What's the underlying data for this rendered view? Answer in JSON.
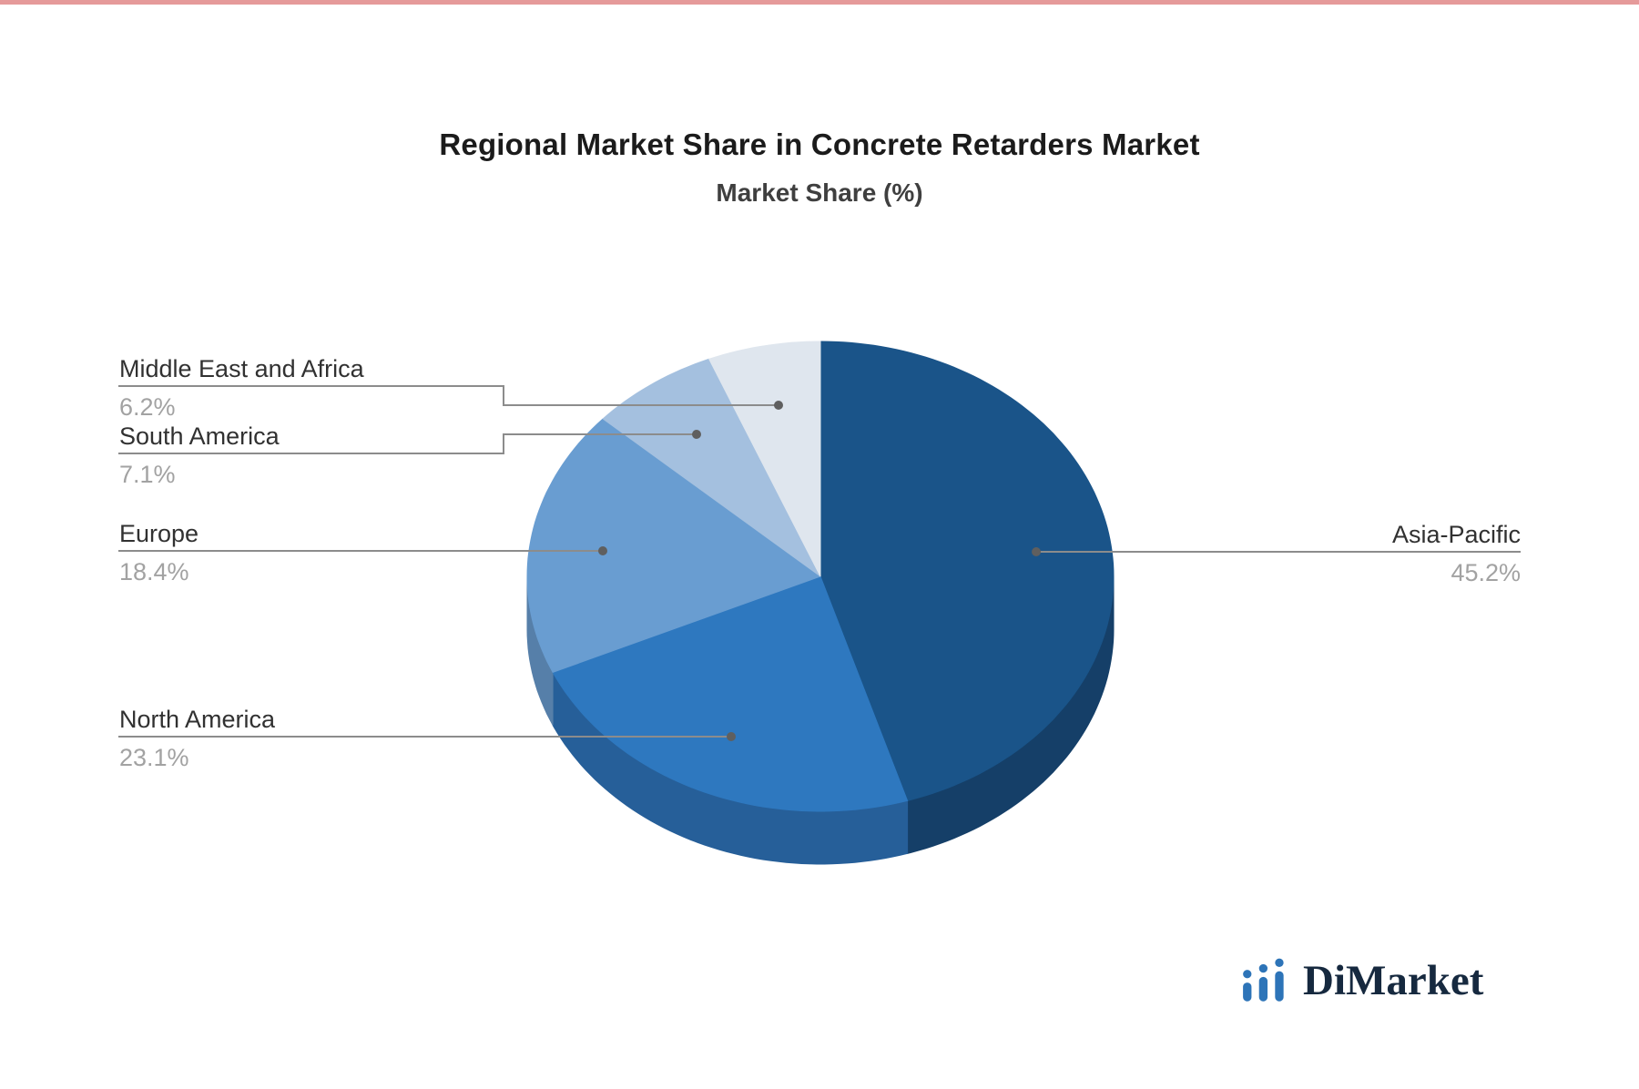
{
  "page": {
    "title": "Regional Market Share in Concrete Retarders Market",
    "subtitle": "Market Share (%)"
  },
  "chart_data": {
    "type": "pie",
    "title": "Regional Market Share in Concrete Retarders Market",
    "subtitle": "Market Share (%)",
    "unit": "%",
    "effect": "3d",
    "start_angle": "12-o-clock",
    "direction": "clockwise",
    "slices": [
      {
        "label": "Asia-Pacific",
        "value": 45.2,
        "display": "45.2%",
        "color": "#1a5489",
        "side_color": "#153f68"
      },
      {
        "label": "North America",
        "value": 23.1,
        "display": "23.1%",
        "color": "#2e78bf",
        "side_color": "#265f99"
      },
      {
        "label": "Europe",
        "value": 18.4,
        "display": "18.4%",
        "color": "#699dd1",
        "side_color": "#567fa9"
      },
      {
        "label": "South America",
        "value": 7.1,
        "display": "7.1%",
        "color": "#a4c0df",
        "side_color": "#87a3c2"
      },
      {
        "label": "Middle East and Africa",
        "value": 6.2,
        "display": "6.2%",
        "color": "#dfe6ee",
        "side_color": "#b9c6d6"
      }
    ]
  },
  "branding": {
    "logo_text": "DiMarket",
    "logo_icon": "bar-chart-logo-icon",
    "logo_bar_color": "#2d74b8",
    "logo_text_color": "#16293f"
  },
  "style_tokens": {
    "label_color": "#313131",
    "percent_color": "#a2a2a2",
    "leader_line_color": "#8c8c8c",
    "leader_dot_color": "#5f5f5f",
    "top_accent_color": "#e59a9a"
  }
}
